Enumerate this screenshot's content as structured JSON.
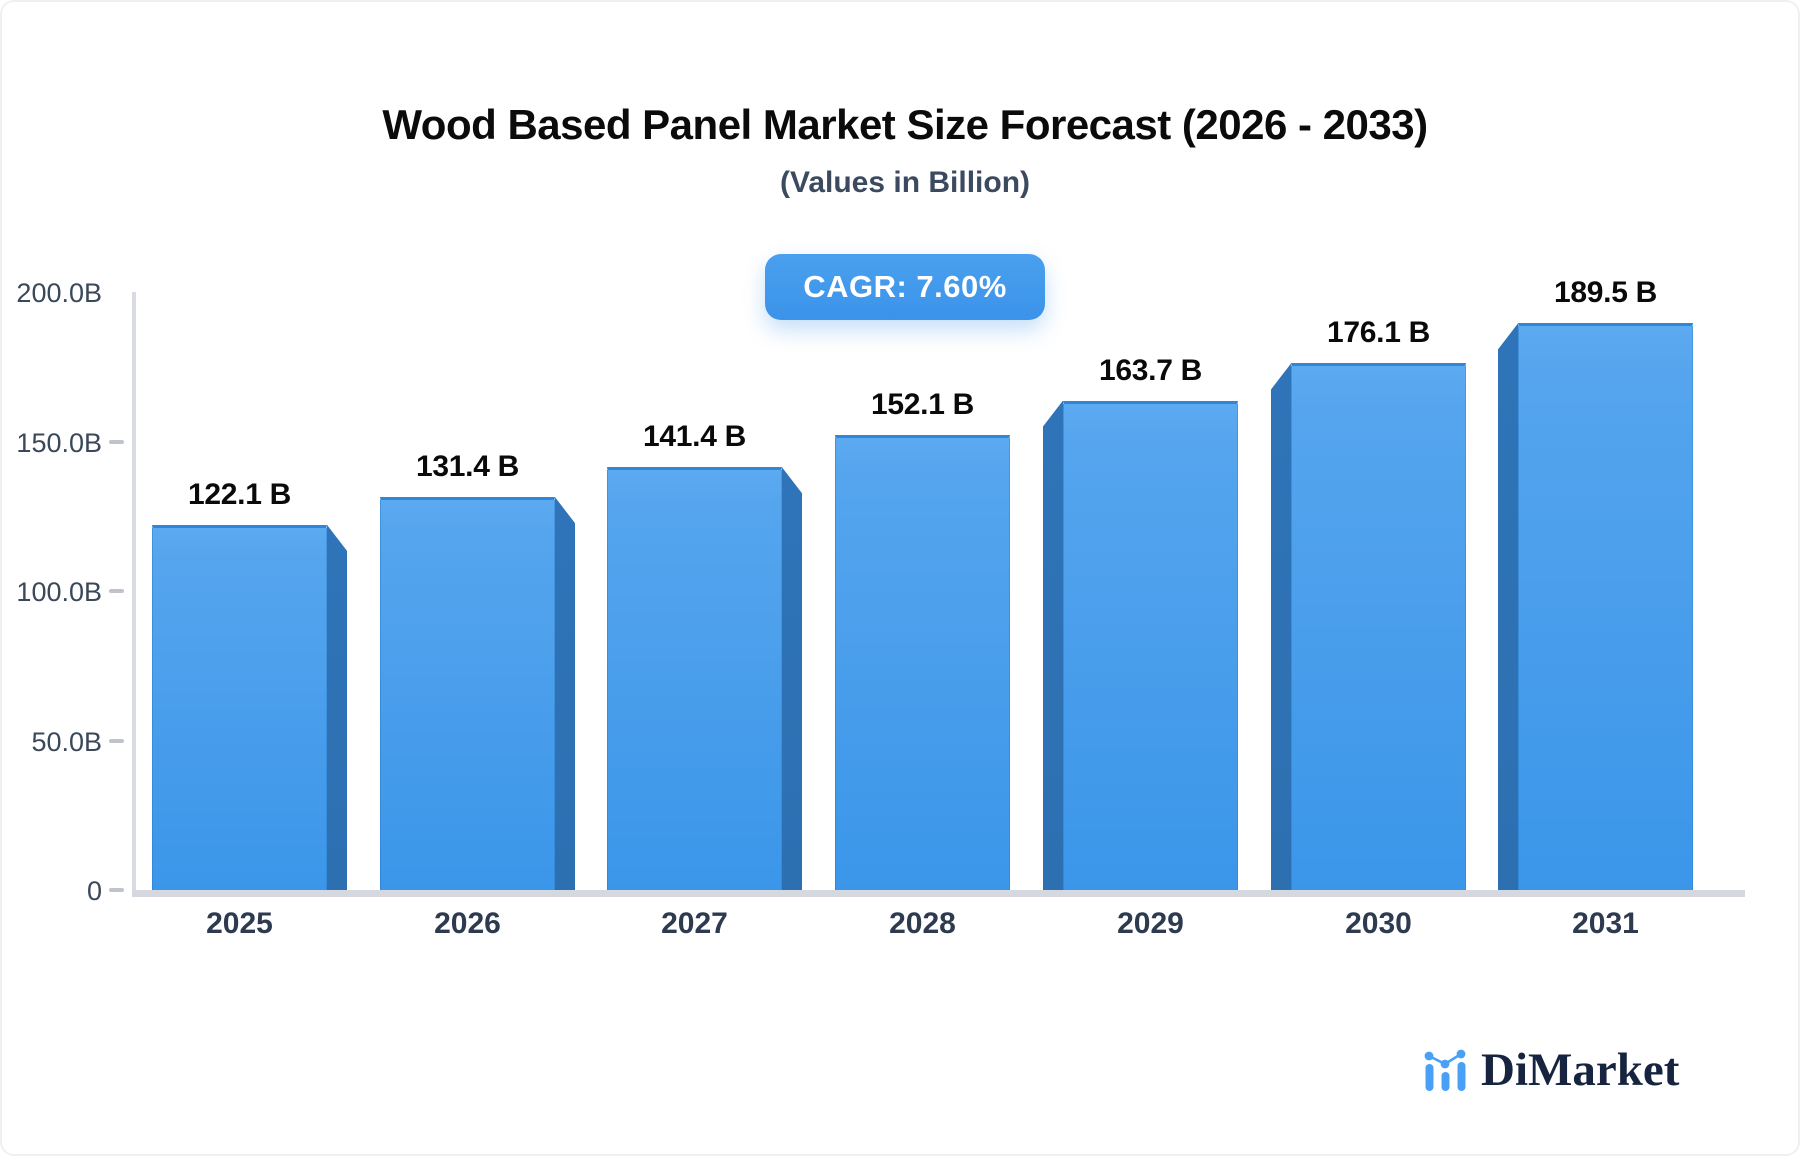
{
  "header": {
    "title": "Wood Based Panel Market Size Forecast (2026 - 2033)",
    "subtitle": "(Values in Billion)",
    "cagr_badge": "CAGR: 7.60%"
  },
  "chart_data": {
    "type": "bar",
    "title": "Wood Based Panel Market Size Forecast (2026 - 2033)",
    "subtitle": "(Values in Billion)",
    "cagr_percent": 7.6,
    "unit": "Billion",
    "categories": [
      "2025",
      "2026",
      "2027",
      "2028",
      "2029",
      "2030",
      "2031"
    ],
    "values": [
      122.1,
      131.4,
      141.4,
      152.1,
      163.7,
      176.1,
      189.5
    ],
    "bar_labels": [
      "122.1 B",
      "131.4 B",
      "141.4 B",
      "152.1 B",
      "163.7 B",
      "176.1 B",
      "189.5 B"
    ],
    "y_ticks": [
      {
        "label": "200.0B",
        "value": 200
      },
      {
        "label": "150.0B",
        "value": 150
      },
      {
        "label": "100.0B",
        "value": 100
      },
      {
        "label": "50.0B",
        "value": 50
      },
      {
        "label": "0",
        "value": 0
      }
    ],
    "ylim": [
      0,
      200
    ],
    "grid": false,
    "legend": false,
    "bar_style": "3d-extruded, side facing away from center"
  },
  "branding": {
    "name": "DiMarket",
    "icon": "bar-chart-logo-icon"
  },
  "colors": {
    "badge_bg": "#3e96ec",
    "bar_face_top": "#5caaf0",
    "bar_face_bottom": "#3b96ea",
    "bar_side": "#2d70b2",
    "bar_top_edge": "#3186d8",
    "axis": "#d8dbe1",
    "baseline": "#d5d8de",
    "tick": "#b4b9c2",
    "y_label": "#3b4859",
    "x_label": "#2d3a50",
    "data_label": "#0a0a0a",
    "title": "#0b0b0c",
    "subtitle": "#3c4a60",
    "logo_blue": "#4aa0f5",
    "logo_navy": "#172440"
  }
}
